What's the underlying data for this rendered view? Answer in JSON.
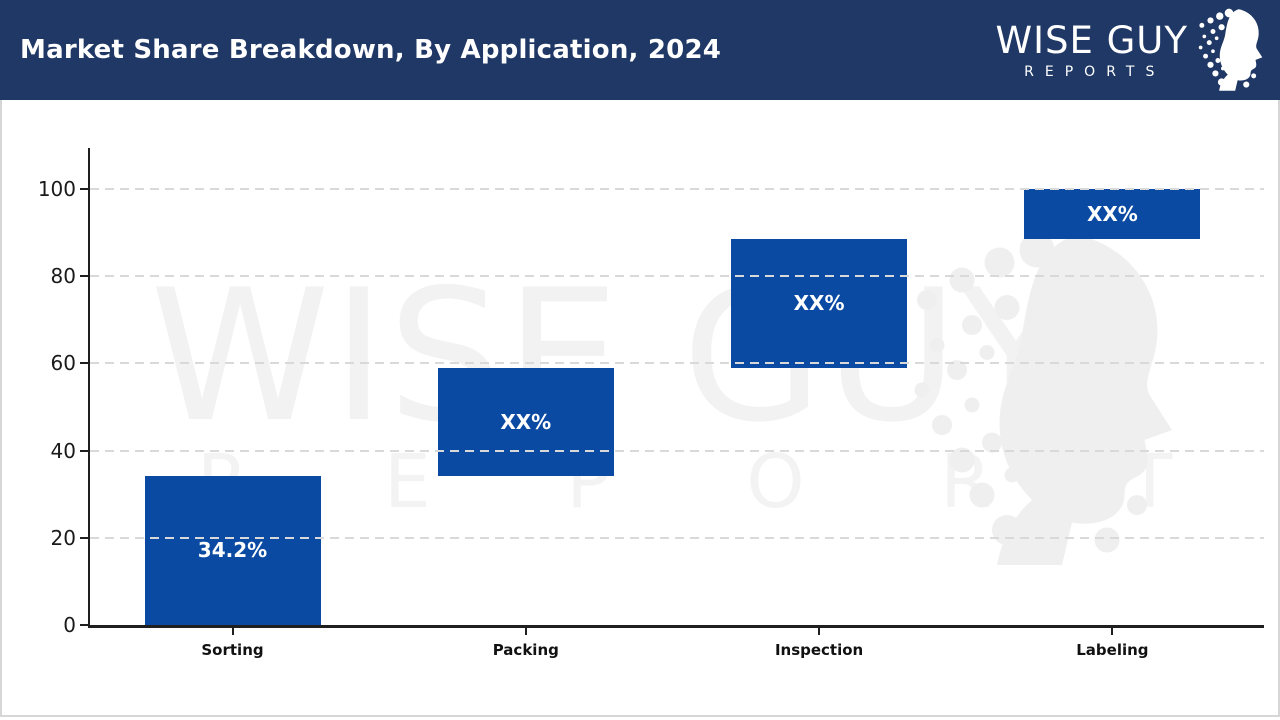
{
  "header": {
    "title": "Market Share Breakdown, By Application, 2024",
    "background_color": "#203866",
    "logo": {
      "line1": "WISE GUY",
      "line2": "REPORTS"
    }
  },
  "watermark": {
    "line1": "WISE GUY",
    "line2": "REPORTS"
  },
  "chart_data": {
    "type": "bar",
    "subtype": "floating-waterfall-segments",
    "title": "Market Share Breakdown, By Application, 2024",
    "categories": [
      "Sorting",
      "Packing",
      "Inspection",
      "Labeling"
    ],
    "segments": [
      {
        "category": "Sorting",
        "start": 0,
        "end": 34.2,
        "label": "34.2%"
      },
      {
        "category": "Packing",
        "start": 34.2,
        "end": 59.0,
        "label": "XX%"
      },
      {
        "category": "Inspection",
        "start": 59.0,
        "end": 88.6,
        "label": "XX%"
      },
      {
        "category": "Labeling",
        "start": 88.6,
        "end": 100,
        "label": "XX%"
      }
    ],
    "yticks": [
      0,
      20,
      40,
      60,
      80,
      100
    ],
    "ylim": [
      0,
      105
    ],
    "xlabel": "",
    "ylabel": "",
    "bar_color": "#0b4aa2",
    "grid": "horizontal-dashed",
    "gridline_color": "#d9d9d9",
    "legend": "none"
  }
}
